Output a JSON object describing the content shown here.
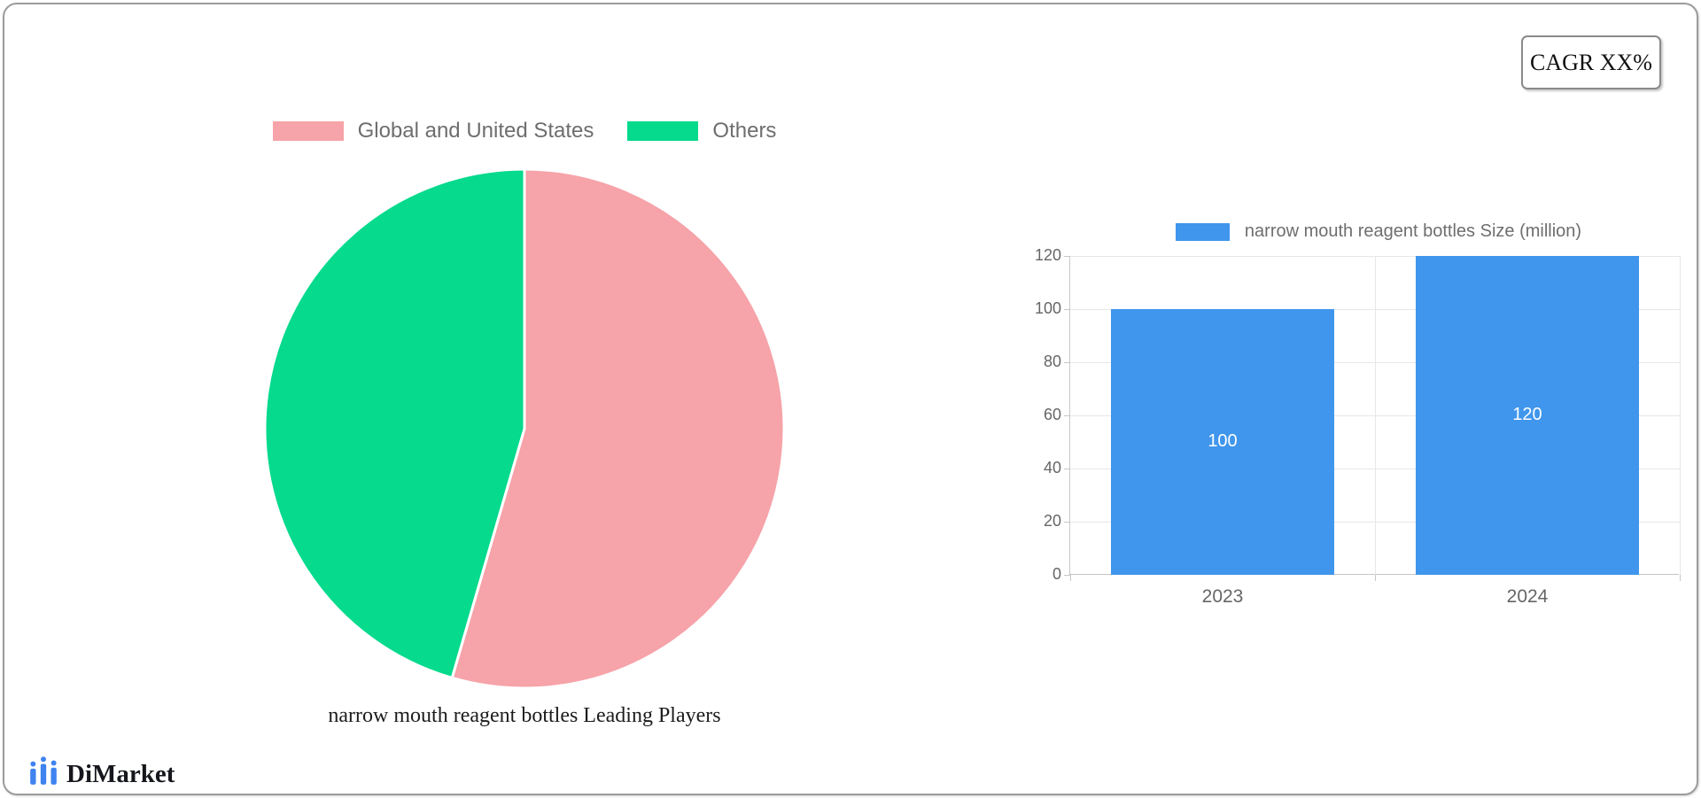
{
  "cagr_box": {
    "label": "CAGR XX%"
  },
  "brand": {
    "name": "DiMarket",
    "icon": "bar-chart-logo-icon",
    "icon_color": "#3e83f0"
  },
  "colors": {
    "pie_primary": "#f6a3a9",
    "pie_secondary": "#05da8d",
    "bar_primary": "#3f96ec",
    "legend_text": "#6e6e6e",
    "axis_text": "#666666",
    "grid_line": "#e7e7e7",
    "axis_line": "#c7c7c7",
    "frame_border": "#9c9c9c",
    "value_label": "#ffffff",
    "caption_text": "#1c1c1c"
  },
  "chart_data": [
    {
      "type": "pie",
      "title": "narrow mouth reagent bottles Leading Players",
      "labels": [
        "Global and United States",
        "Others"
      ],
      "values": [
        54.5,
        45.5
      ],
      "colors": [
        "#f6a3a9",
        "#05da8d"
      ],
      "legend_position": "top",
      "start_angle": "12-oclock, clockwise, first slice on right",
      "slice_border_color": "#ffffff"
    },
    {
      "type": "bar",
      "categories": [
        "2023",
        "2024"
      ],
      "series": [
        {
          "name": "narrow mouth reagent bottles Size (million)",
          "values": [
            100,
            120
          ],
          "color": "#3f96ec"
        }
      ],
      "value_labels": [
        "100",
        "120"
      ],
      "yticks": [
        0,
        20,
        40,
        60,
        80,
        100,
        120
      ],
      "ylim": [
        0,
        120
      ],
      "grid": true,
      "legend_position": "top",
      "xlabel": "",
      "ylabel": ""
    }
  ]
}
